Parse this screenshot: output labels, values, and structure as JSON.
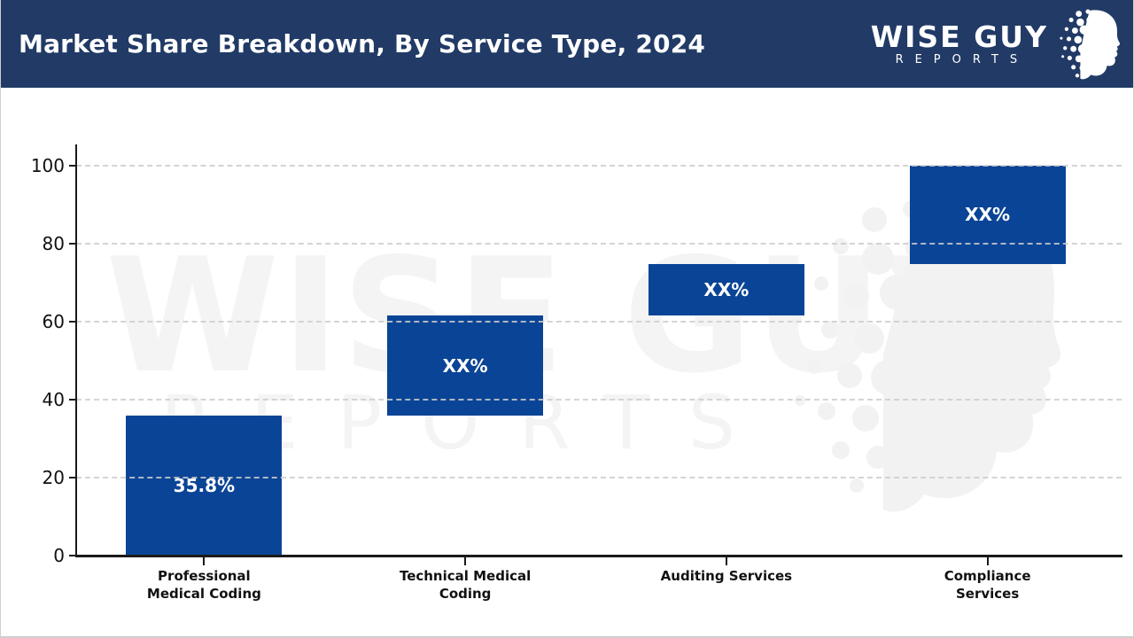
{
  "header": {
    "title": "Market Share Breakdown, By Service Type, 2024",
    "logo": {
      "line1": "WISE GUY",
      "line2": "REPORTS"
    }
  },
  "watermark": {
    "line1": "WISE GUY",
    "line2": "REPORTS"
  },
  "colors": {
    "header_bg": "#213a66",
    "bar": "#0a4496",
    "bar_label": "#ffffff",
    "axis": "#1a1a1a",
    "gridline": "#d9d9d9",
    "watermark": "#f4f4f4",
    "background": "#ffffff"
  },
  "chart_data": {
    "type": "bar",
    "subtype": "waterfall",
    "title": "Market Share Breakdown, By Service Type, 2024",
    "categories": [
      "Professional Medical Coding",
      "Technical Medical Coding",
      "Auditing Services",
      "Compliance Services"
    ],
    "bars": [
      {
        "category": "Professional\nMedical Coding",
        "start": 0,
        "end": 35.8,
        "label": "35.8%"
      },
      {
        "category": "Technical Medical\nCoding",
        "start": 35.8,
        "end": 61.5,
        "label": "XX%"
      },
      {
        "category": "Auditing Services",
        "start": 61.5,
        "end": 74.8,
        "label": "XX%"
      },
      {
        "category": "Compliance\nServices",
        "start": 74.8,
        "end": 100,
        "label": "XX%"
      }
    ],
    "xlabel": "",
    "ylabel": "",
    "ylim": [
      0,
      100
    ],
    "yticks": [
      0,
      20,
      40,
      60,
      80,
      100
    ],
    "grid": "horizontal-dashed",
    "legend": "none"
  }
}
